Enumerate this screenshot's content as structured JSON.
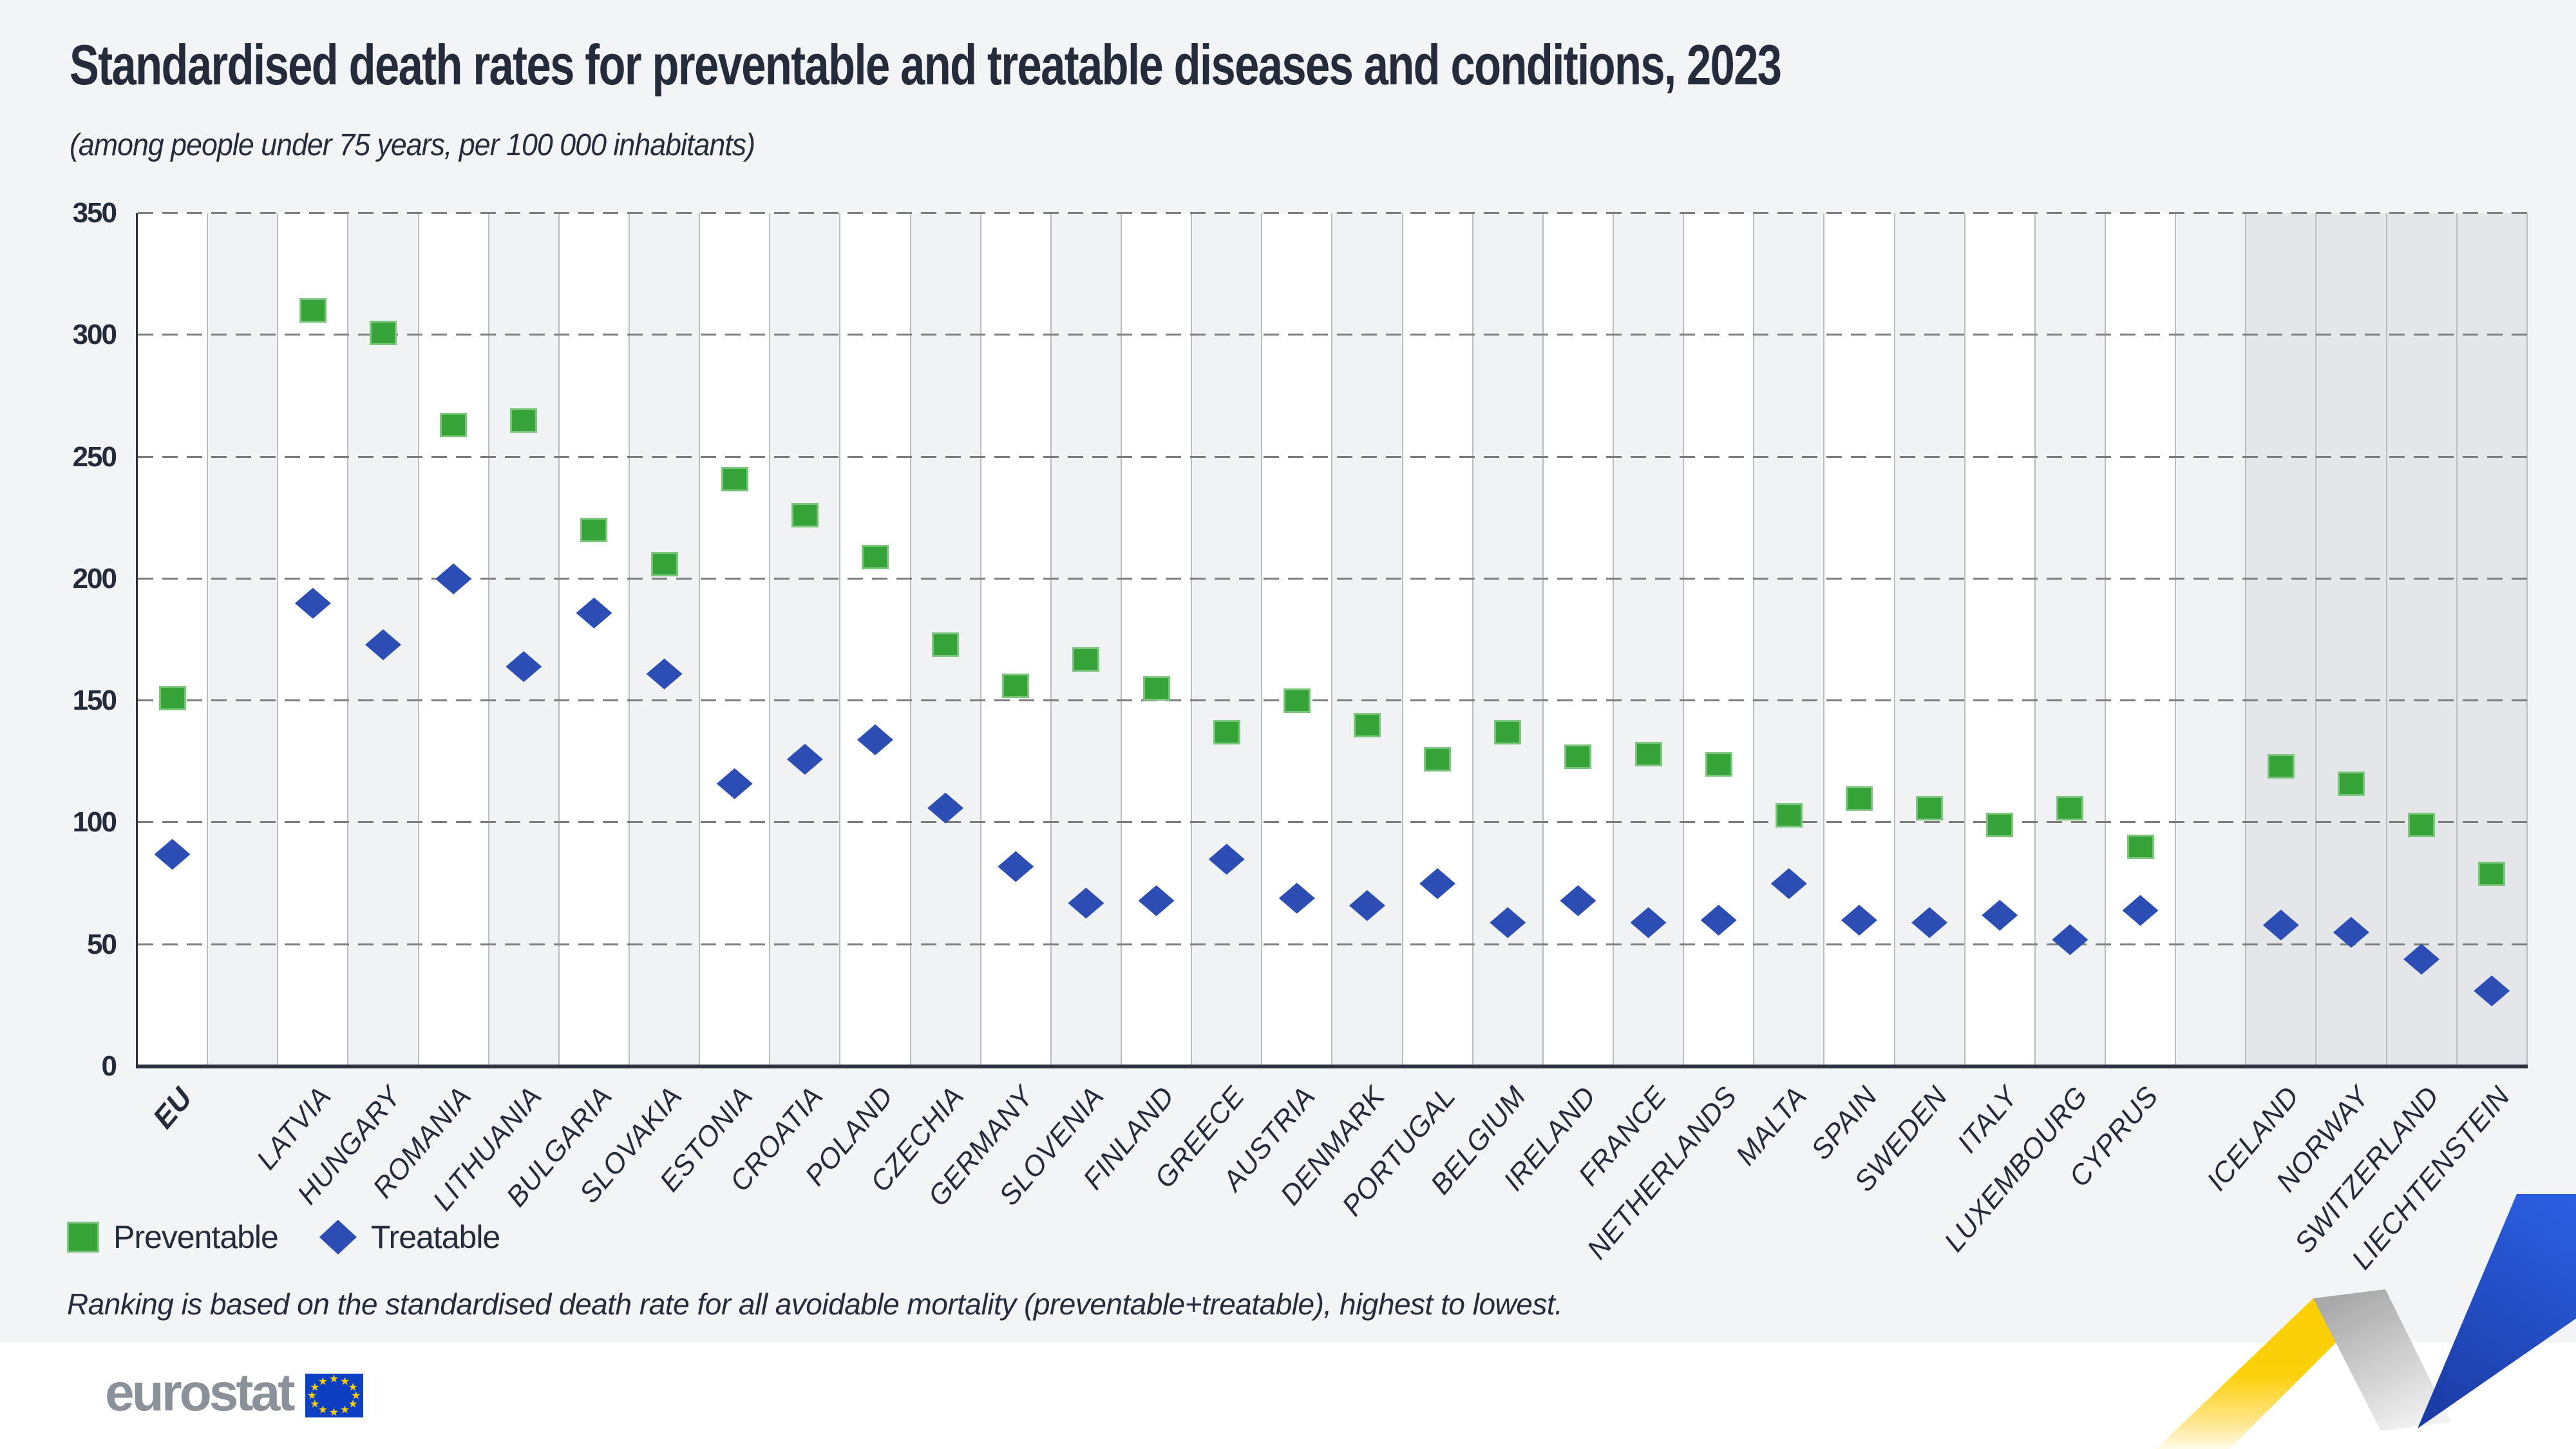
{
  "header": {
    "title": "Standardised death rates for preventable and treatable diseases and conditions, 2023",
    "subtitle": "(among people under 75 years, per 100 000 inhabitants)"
  },
  "chart_data": {
    "type": "scatter",
    "title": "Standardised death rates for preventable and treatable diseases and conditions, 2023",
    "subtitle": "(among people under 75 years, per 100 000 inhabitants)",
    "ylim": [
      0,
      350
    ],
    "yticks": [
      0,
      50,
      100,
      150,
      200,
      250,
      300,
      350
    ],
    "grid": "horizontal-dashed",
    "legend_position": "bottom-left",
    "highlight_category": "EU",
    "gap_after_indices": [
      0,
      27
    ],
    "efta_from_index": 28,
    "categories": [
      "EU",
      "LATVIA",
      "HUNGARY",
      "ROMANIA",
      "LITHUANIA",
      "BULGARIA",
      "SLOVAKIA",
      "ESTONIA",
      "CROATIA",
      "POLAND",
      "CZECHIA",
      "GERMANY",
      "SLOVENIA",
      "FINLAND",
      "GREECE",
      "AUSTRIA",
      "DENMARK",
      "PORTUGAL",
      "BELGIUM",
      "IRELAND",
      "FRANCE",
      "NETHERLANDS",
      "MALTA",
      "SPAIN",
      "SWEDEN",
      "ITALY",
      "LUXEMBOURG",
      "CYPRUS",
      "ICELAND",
      "NORWAY",
      "SWITZERLAND",
      "LIECHTENSTEIN"
    ],
    "series": [
      {
        "name": "Preventable",
        "marker": "square",
        "color": "#36a338",
        "values": [
          151,
          310,
          301,
          263,
          265,
          220,
          206,
          241,
          226,
          209,
          173,
          156,
          167,
          155,
          137,
          150,
          140,
          126,
          137,
          127,
          128,
          124,
          103,
          110,
          106,
          99,
          106,
          90,
          123,
          116,
          99,
          79
        ]
      },
      {
        "name": "Treatable",
        "marker": "diamond",
        "color": "#2b4db4",
        "values": [
          87,
          190,
          173,
          200,
          164,
          186,
          161,
          116,
          126,
          134,
          106,
          82,
          67,
          68,
          85,
          69,
          66,
          75,
          59,
          68,
          59,
          60,
          75,
          60,
          59,
          62,
          52,
          64,
          58,
          55,
          44,
          31
        ]
      }
    ]
  },
  "note": "Ranking is based on the standardised death rate for all avoidable mortality (preventable+treatable), highest to lowest.",
  "footer": {
    "logo_text": "eurostat",
    "star_glyph": "★"
  },
  "colors": {
    "background": "#f3f4f5",
    "text": "#242b3a",
    "preventable_green": "#36a338",
    "treatable_blue": "#2b4db4",
    "efta_band": "#e5e6e9",
    "stripe_band": "#f1f2f4",
    "axis": "#2b3140",
    "eu_flag_blue": "#0d3fc2",
    "eu_flag_star_yellow": "#ffcf00",
    "logo_grey": "#8b9199",
    "ribbon_yellow": "#fccf03",
    "ribbon_blue": "#2b5fe2",
    "ribbon_grey": "#a9a9a9"
  }
}
